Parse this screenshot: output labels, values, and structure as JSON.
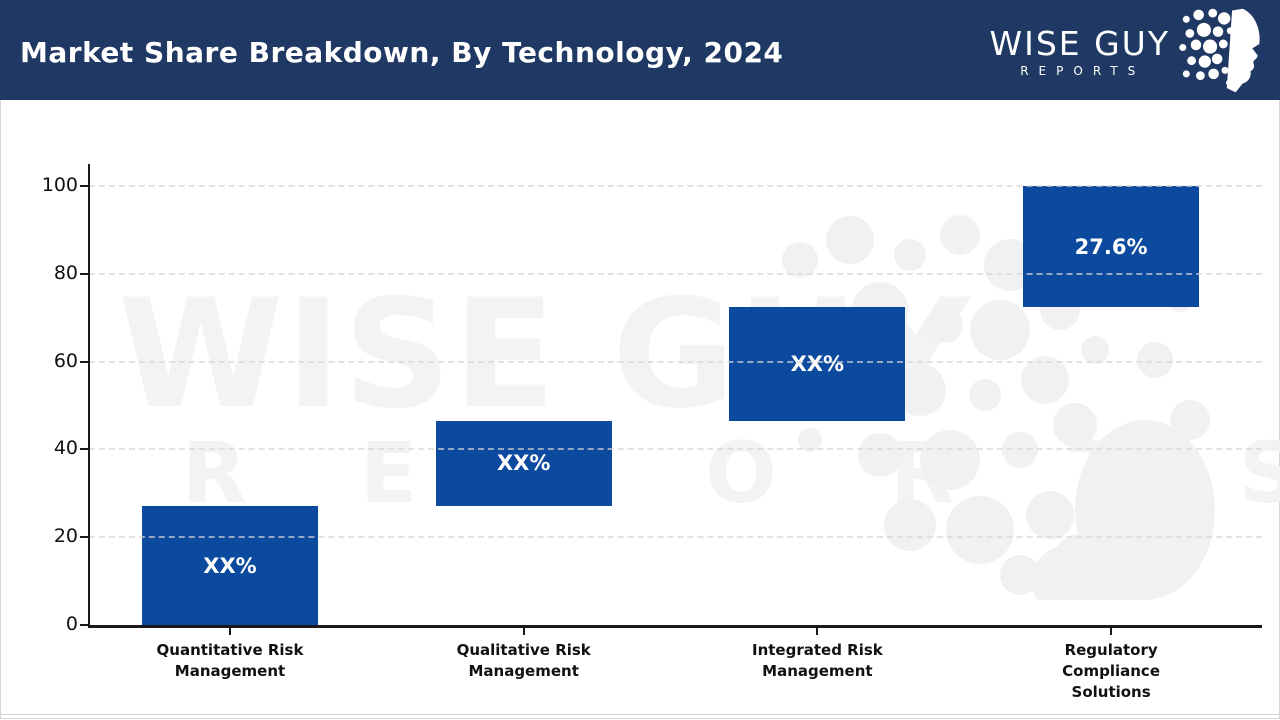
{
  "header": {
    "title": "Market Share Breakdown, By Technology, 2024",
    "bg_color": "#203864",
    "logo": {
      "line1": "WISE GUY",
      "line2": "REPORTS"
    }
  },
  "watermark": {
    "text1": "WISE GUY",
    "text2": "R E P O R T S"
  },
  "chart_data": {
    "type": "bar",
    "subtype": "floating-waterfall",
    "title": "Market Share Breakdown, By Technology, 2024",
    "categories": [
      "Quantitative Risk Management",
      "Qualitative Risk Management",
      "Integrated Risk Management",
      "Regulatory Compliance Solutions"
    ],
    "segments": [
      {
        "category": "Quantitative Risk Management",
        "lines": [
          "Quantitative Risk",
          "Management"
        ],
        "start": 0,
        "end": 27.1,
        "value": 27.1,
        "value_label": "XX%"
      },
      {
        "category": "Qualitative Risk Management",
        "lines": [
          "Qualitative Risk",
          "Management"
        ],
        "start": 27.1,
        "end": 46.5,
        "value": 19.4,
        "value_label": "XX%"
      },
      {
        "category": "Integrated Risk Management",
        "lines": [
          "Integrated Risk",
          "Management"
        ],
        "start": 46.5,
        "end": 72.4,
        "value": 25.9,
        "value_label": "XX%"
      },
      {
        "category": "Regulatory Compliance Solutions",
        "lines": [
          "Regulatory",
          "Compliance",
          "Solutions"
        ],
        "start": 72.4,
        "end": 100,
        "value": 27.6,
        "value_label": "27.6%"
      }
    ],
    "bar_color": "#0b4a9f",
    "bar_label_color": "#ffffff",
    "ylim": [
      0,
      100
    ],
    "yticks": [
      0,
      20,
      40,
      60,
      80,
      100
    ],
    "grid": "dashed-horizontal",
    "legend": "none",
    "xlabel": "",
    "ylabel": ""
  }
}
